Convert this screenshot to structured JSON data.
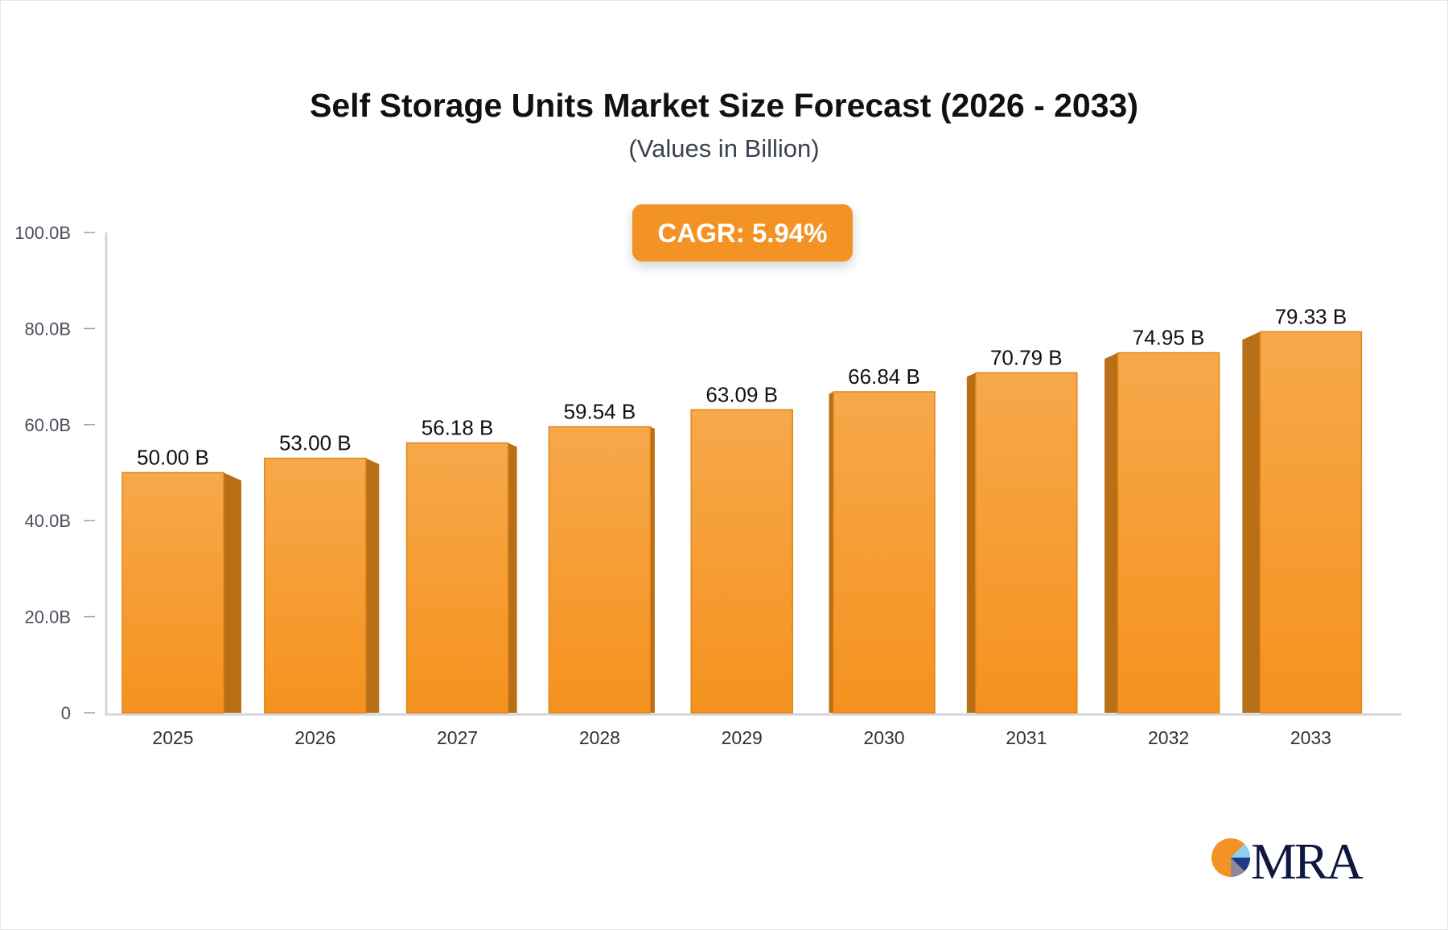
{
  "chart_data": {
    "type": "bar",
    "title": "Self Storage Units Market Size Forecast (2026 - 2033)",
    "subtitle": "(Values in Billion)",
    "annotation": "CAGR: 5.94%",
    "categories": [
      "2025",
      "2026",
      "2027",
      "2028",
      "2029",
      "2030",
      "2031",
      "2032",
      "2033"
    ],
    "values": [
      50.0,
      53.0,
      56.18,
      59.54,
      63.09,
      66.84,
      70.79,
      74.95,
      79.33
    ],
    "value_labels": [
      "50.00 B",
      "53.00 B",
      "56.18 B",
      "59.54 B",
      "63.09 B",
      "66.84 B",
      "70.79 B",
      "74.95 B",
      "79.33 B"
    ],
    "ylim": [
      0,
      100
    ],
    "yticks": [
      0,
      20,
      40,
      60,
      80,
      100
    ],
    "ytick_labels": [
      "0",
      "20.0B",
      "40.0B",
      "60.0B",
      "80.0B",
      "100.0B"
    ],
    "xlabel": "",
    "ylabel": "",
    "grid": false,
    "legend": "none",
    "colors": {
      "bar_top": "#f7a84b",
      "bar_bottom": "#f5921e",
      "bar_side": "#b86f16",
      "cagr_badge": "#f39325"
    }
  },
  "logo": {
    "text": "MRA"
  }
}
